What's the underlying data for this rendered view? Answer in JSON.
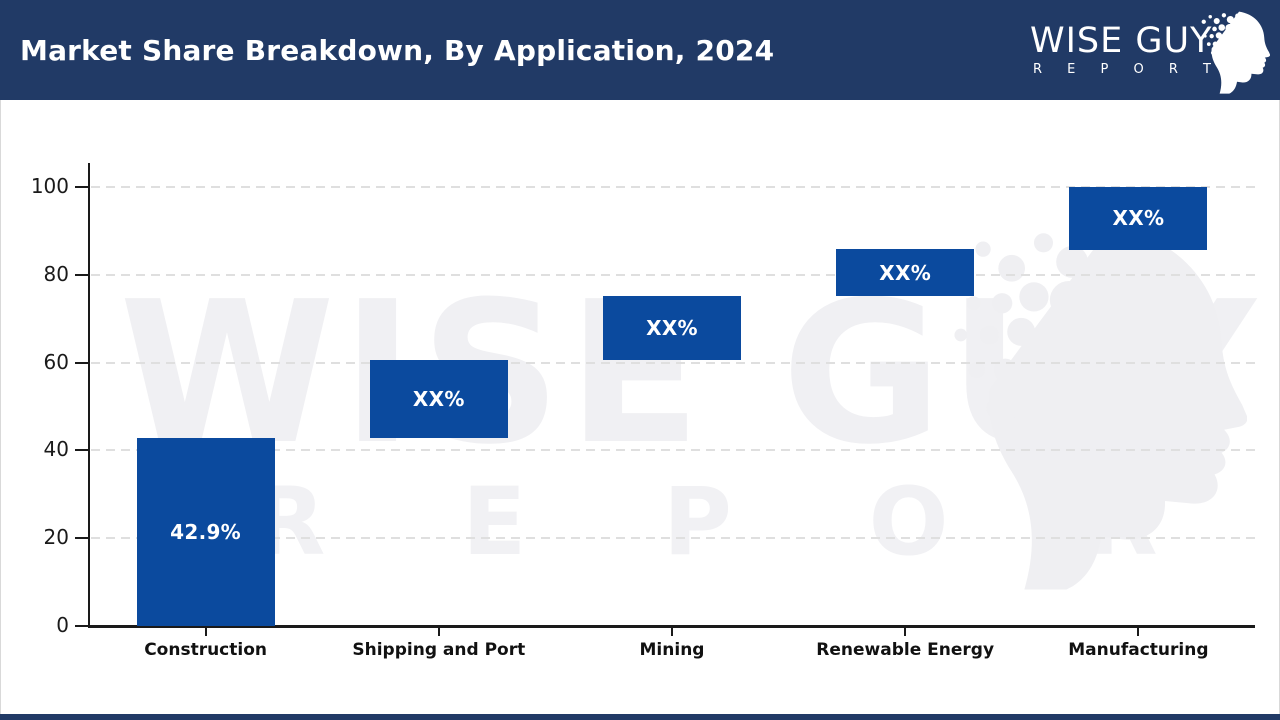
{
  "header": {
    "title": "Market Share Breakdown, By Application, 2024",
    "logo": {
      "name": "WISE GUY",
      "subtitle": "R E P O R T S",
      "face_icon": "dotted-face-profile"
    }
  },
  "watermark": {
    "line1": "WISE GUY",
    "line2": "R E P O R T S",
    "face_icon": "dotted-face-profile"
  },
  "colors": {
    "header_bg": "#213A66",
    "footer_bg": "#213A66",
    "bar": "#0B4A9E",
    "bar_label": "#FFFFFF",
    "axis": "#1A1A1A",
    "gridline": "#DFDFDF",
    "watermark": "#F0F0F3",
    "background": "#FFFFFF",
    "title_text": "#FFFFFF"
  },
  "chart_data": {
    "type": "bar",
    "variant": "waterfall",
    "title": "Market Share Breakdown, By Application, 2024",
    "categories": [
      "Construction",
      "Shipping and Port",
      "Mining",
      "Renewable Energy",
      "Manufacturing"
    ],
    "segments": [
      {
        "category": "Construction",
        "start": 0,
        "end": 42.9,
        "label": "42.9%"
      },
      {
        "category": "Shipping and Port",
        "start": 42.9,
        "end": 60.7,
        "label": "XX%"
      },
      {
        "category": "Mining",
        "start": 60.7,
        "end": 75.1,
        "label": "XX%"
      },
      {
        "category": "Renewable Energy",
        "start": 75.2,
        "end": 85.8,
        "label": "XX%"
      },
      {
        "category": "Manufacturing",
        "start": 85.7,
        "end": 100,
        "label": "XX%"
      }
    ],
    "y_ticks": [
      0,
      20,
      40,
      60,
      80,
      100
    ],
    "ylim": [
      0,
      105.5
    ],
    "xlabel": "",
    "ylabel": "",
    "grid": "dashed-horizontal-light",
    "legend": "none",
    "bar_color": "#0B4A9E",
    "value_label_position": "center-inside"
  }
}
